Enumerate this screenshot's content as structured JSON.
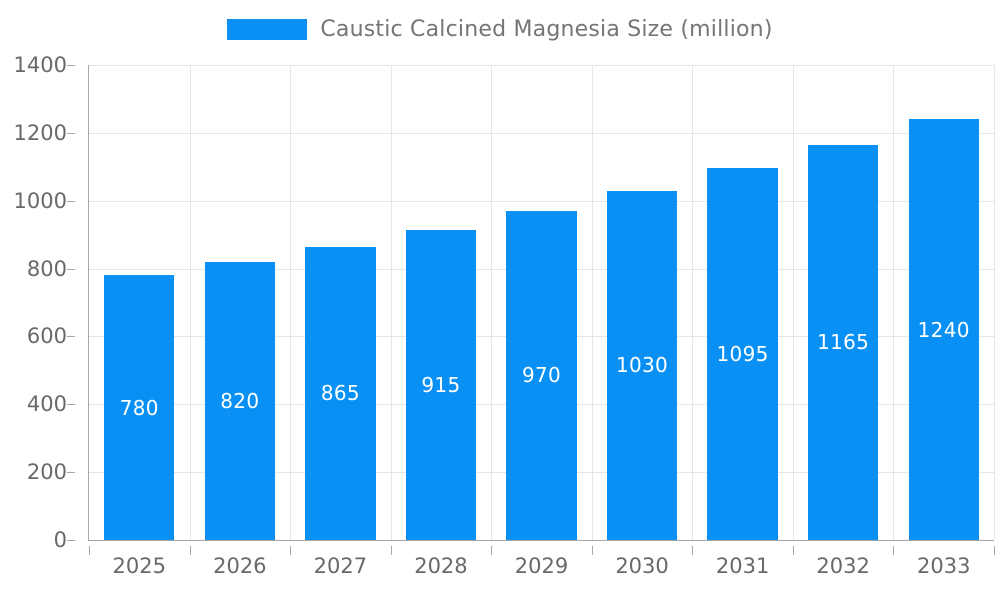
{
  "chart_data": {
    "type": "bar",
    "title": "Caustic Calcined Magnesia Size (million)",
    "categories": [
      "2025",
      "2026",
      "2027",
      "2028",
      "2029",
      "2030",
      "2031",
      "2032",
      "2033"
    ],
    "values": [
      780,
      820,
      865,
      915,
      970,
      1030,
      1095,
      1165,
      1240
    ],
    "xlabel": "",
    "ylabel": "",
    "ylim": [
      0,
      1400
    ],
    "ytick_step": 200,
    "grid": true,
    "legend_position": "top",
    "value_labels": "inside-center",
    "colors": {
      "bar": "#0990f5",
      "value_label": "#ffffff",
      "axis": "#a8a8a8",
      "grid": "#e6e6e6",
      "tick_label": "#696969",
      "legend_text": "#757575"
    }
  }
}
